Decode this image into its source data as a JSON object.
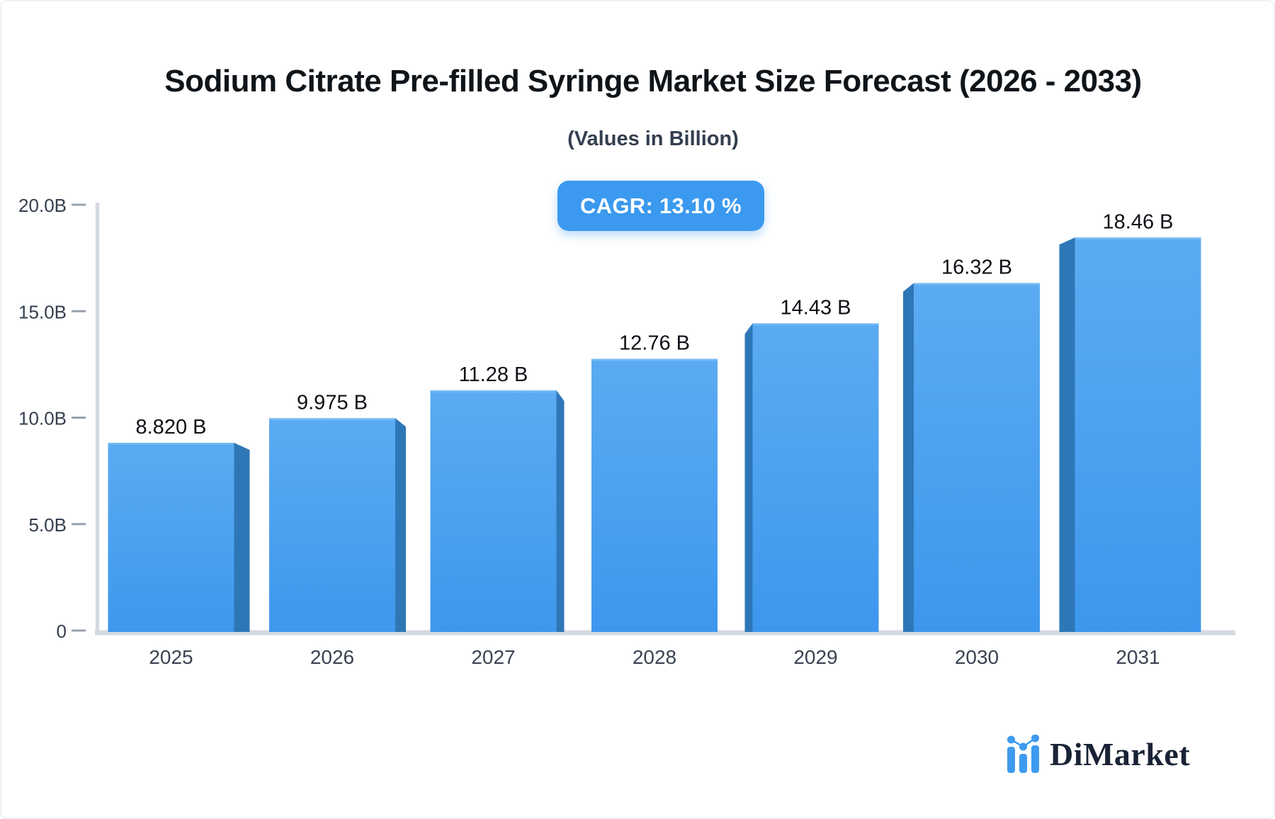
{
  "header": {
    "title": "Sodium Citrate Pre-filled Syringe Market Size Forecast (2026 - 2033)",
    "subtitle": "(Values in Billion)"
  },
  "badge": {
    "label": "CAGR: 13.10 %"
  },
  "chart_data": {
    "type": "bar",
    "title": "Sodium Citrate Pre-filled Syringe Market Size Forecast (2026 - 2033)",
    "subtitle": "(Values in Billion)",
    "categories": [
      "2025",
      "2026",
      "2027",
      "2028",
      "2029",
      "2030",
      "2031"
    ],
    "values": [
      8.82,
      9.975,
      11.28,
      12.76,
      14.43,
      16.32,
      18.46
    ],
    "value_labels": [
      "8.820 B",
      "9.975 B",
      "11.28 B",
      "12.76 B",
      "14.43 B",
      "16.32 B",
      "18.46 B"
    ],
    "ylim": [
      0,
      20
    ],
    "yticks": {
      "values": [
        20,
        15,
        10,
        5,
        0
      ],
      "labels": [
        "20.0B",
        "15.0B",
        "10.0B",
        "5.0B",
        "0"
      ]
    },
    "xlabel": "",
    "ylabel": "",
    "grid": false,
    "legend": false,
    "annotation": "CAGR: 13.10 %",
    "colors": {
      "bar_face_top": "#5babf1",
      "bar_face_bottom": "#3e97ee",
      "bar_side": "#2e77b7",
      "bar_top_edge": "#74b9f4",
      "axis_line": "#d5dae1",
      "tick_mark": "#99a2ac",
      "ytick_label": "#343e4e",
      "category_label": "#3a4352",
      "value_label": "#0d1117",
      "badge_bg": "#3b99ef"
    }
  },
  "footer": {
    "brand": "DiMarket",
    "logo_icon": "bar-chart-logo-icon",
    "brand_color": "#1a2335",
    "logo_color": "#3e9bef"
  }
}
